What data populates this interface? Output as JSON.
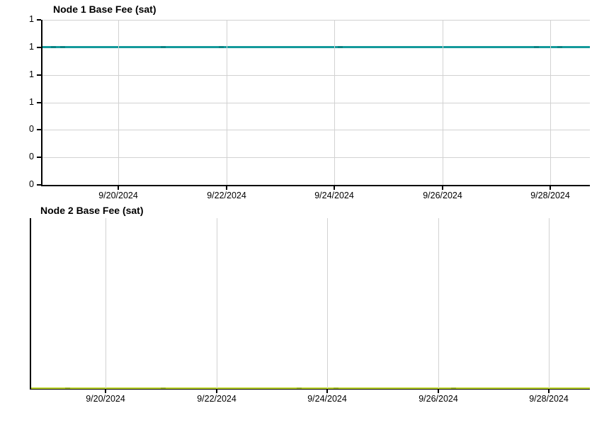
{
  "colors": {
    "background": "#ffffff",
    "axis": "#000000",
    "gridline": "#d2d2d2",
    "text": "#000000",
    "node1_line": "#149a9b",
    "node1_marker": "#0a8384",
    "node2_line": "#bcd42a",
    "node2_marker": "#9fb81f"
  },
  "chart_data": [
    {
      "type": "line",
      "title": "Node 1 Base Fee (sat)",
      "x_tick_labels": [
        "9/20/2024",
        "9/22/2024",
        "9/24/2024",
        "9/26/2024",
        "9/28/2024"
      ],
      "y_tick_labels": [
        "1",
        "1",
        "1",
        "1",
        "0",
        "0",
        "0"
      ],
      "y_ticks_implied": [
        1.2,
        1.0,
        0.8,
        0.6,
        0.4,
        0.2,
        0.0
      ],
      "ylim": [
        0,
        1.2
      ],
      "grid": {
        "horizontal": true,
        "vertical": true
      },
      "legend": "none",
      "series": [
        {
          "name": "Node 1 Base Fee",
          "color": "#149a9b",
          "marker_color": "#0a8384",
          "constant_value": 1,
          "values_at_ticks": [
            1,
            1,
            1,
            1,
            1
          ]
        }
      ]
    },
    {
      "type": "line",
      "title": "Node 2 Base Fee (sat)",
      "x_tick_labels": [
        "9/20/2024",
        "9/22/2024",
        "9/24/2024",
        "9/26/2024",
        "9/28/2024"
      ],
      "y_tick_labels": [],
      "ylim": [
        0,
        1
      ],
      "grid": {
        "horizontal": false,
        "vertical": true
      },
      "legend": "none",
      "series": [
        {
          "name": "Node 2 Base Fee",
          "color": "#bcd42a",
          "marker_color": "#9fb81f",
          "constant_value": 0,
          "values_at_ticks": [
            0,
            0,
            0,
            0,
            0
          ]
        }
      ]
    }
  ]
}
